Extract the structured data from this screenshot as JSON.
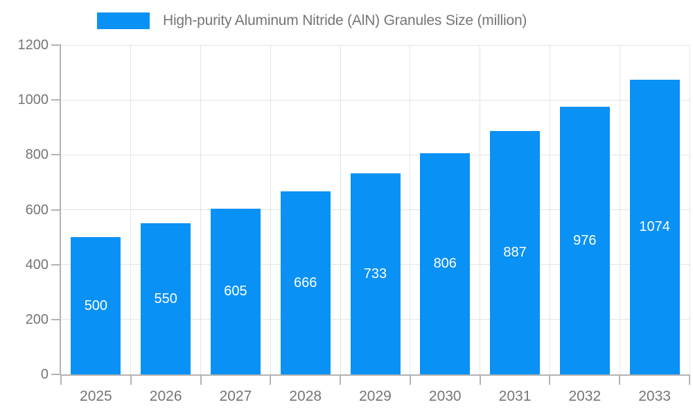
{
  "chart_data": {
    "type": "bar",
    "title": "High-purity Aluminum Nitride (AlN) Granules Size (million)",
    "categories": [
      "2025",
      "2026",
      "2027",
      "2028",
      "2029",
      "2030",
      "2031",
      "2032",
      "2033"
    ],
    "values": [
      500,
      550,
      605,
      666,
      733,
      806,
      887,
      976,
      1074
    ],
    "series": [
      {
        "name": "High-purity Aluminum Nitride (AlN) Granules Size (million)",
        "values": [
          500,
          550,
          605,
          666,
          733,
          806,
          887,
          976,
          1074
        ]
      }
    ],
    "xlabel": "",
    "ylabel": "",
    "ylim": [
      0,
      1200
    ],
    "ytick_step": 200,
    "yticks": [
      0,
      200,
      400,
      600,
      800,
      1000,
      1200
    ],
    "grid": true,
    "legend_position": "top",
    "bar_labels_visible": true,
    "colors": {
      "bar": "#0991F5",
      "bar_label": "#FFFFFF",
      "axis_text": "#757575",
      "axis_line": "#B3B3B3",
      "grid_line": "#E4E4E4",
      "legend_text": "#757575",
      "background": "#FFFFFF"
    }
  }
}
